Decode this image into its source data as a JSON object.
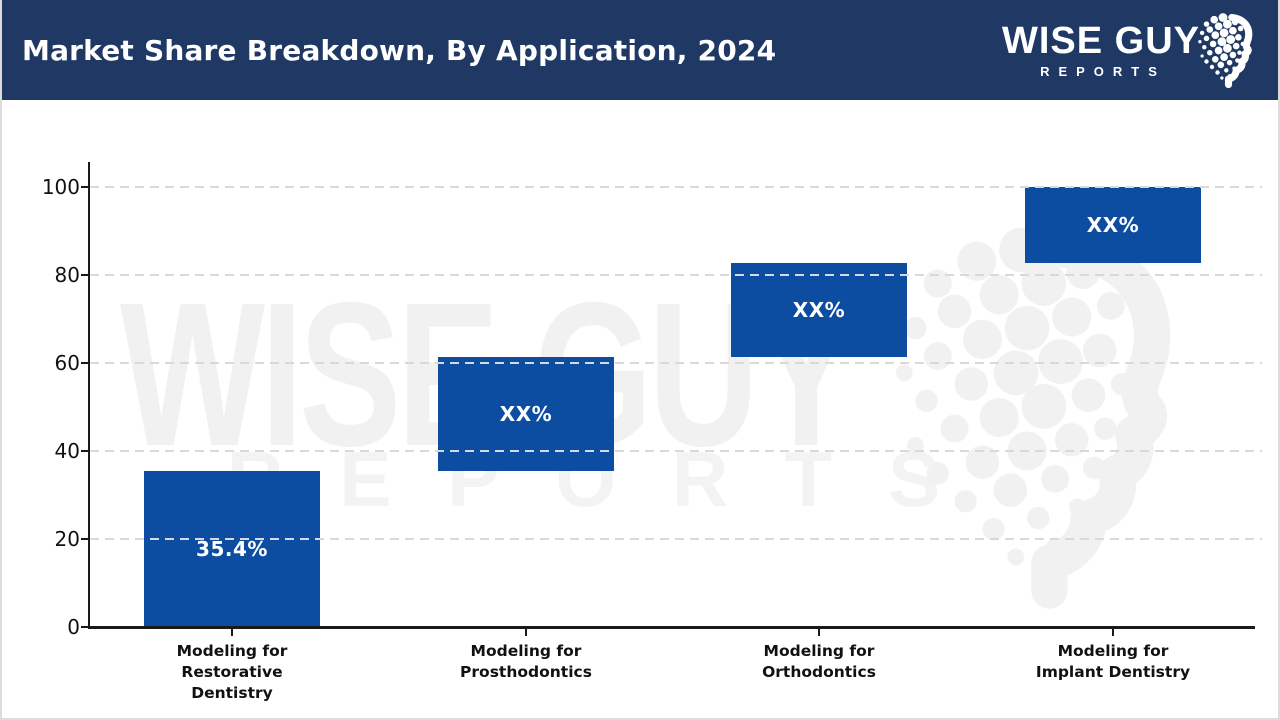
{
  "header": {
    "title": "Market Share Breakdown, By Application, 2024",
    "logo": {
      "line1": "WISE GUY",
      "line2": "REPORTS"
    }
  },
  "watermark": {
    "line1": "WISE GUY",
    "line2": "REPORTS"
  },
  "colors": {
    "header_bg": "#1f3864",
    "bar": "#0c4da2",
    "grid": "#d9d9d9",
    "axis": "#1a1a1a",
    "watermark": "#f1f1f1",
    "bar_label": "#ffffff",
    "title_text": "#ffffff"
  },
  "chart_data": {
    "type": "bar",
    "subtype": "waterfall",
    "title": "Market Share Breakdown, By Application, 2024",
    "categories": [
      "Modeling for\nRestorative\nDentistry",
      "Modeling for\nProsthodontics",
      "Modeling for\nOrthodontics",
      "Modeling for\nImplant Dentistry"
    ],
    "segments": [
      {
        "start": 0,
        "end": 35.4,
        "label": "35.4%"
      },
      {
        "start": 35.4,
        "end": 61.4,
        "label": "XX%"
      },
      {
        "start": 61.4,
        "end": 82.7,
        "label": "XX%"
      },
      {
        "start": 82.7,
        "end": 100,
        "label": "XX%"
      }
    ],
    "yticks": [
      0,
      20,
      40,
      60,
      80,
      100
    ],
    "ylim": [
      0,
      100
    ],
    "xlabel": "",
    "ylabel": "",
    "grid": "horizontal dashed, drawn above bars",
    "legend": "none"
  }
}
